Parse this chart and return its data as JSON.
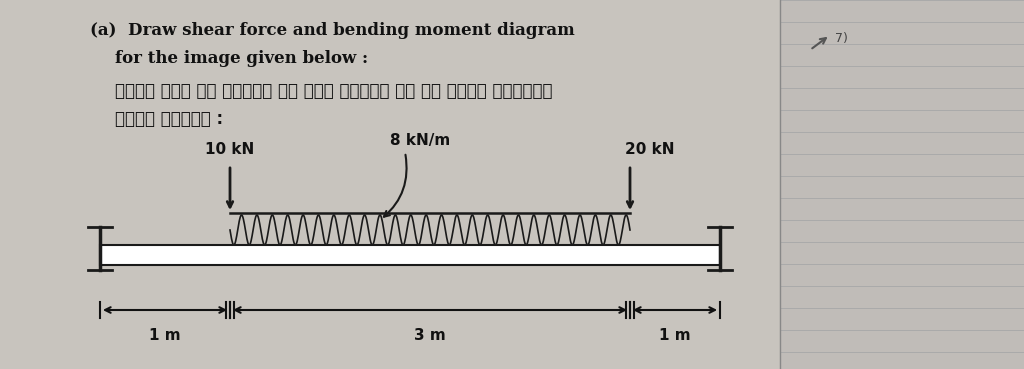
{
  "title_line1": "(a)  Draw shear force and bending moment diagram",
  "title_line2": "for the image given below :",
  "hindi_line1": "नीचे दिए गए चित्र के लिए कर्तन बल और बंकन अघूर्ण",
  "hindi_line2": "आरेख खींचो :",
  "load_10kN_label": "10 kN",
  "dist_load_label": "8 kN/m",
  "load_20kN_label": "20 kN",
  "dim_label_1m_left": "1 m",
  "dim_label_3m": "3 m",
  "dim_label_1m_right": "1 m",
  "bg_color": "#c8c4be",
  "page_color": "#d8d4ce",
  "text_color": "#111111",
  "beam_color": "#1a1a1a",
  "arrow_color": "#1a1a1a",
  "spring_color": "#1a1a1a",
  "notebook_line_color": "#aaaaaa",
  "notebook_right_color": "#c0bcb8"
}
